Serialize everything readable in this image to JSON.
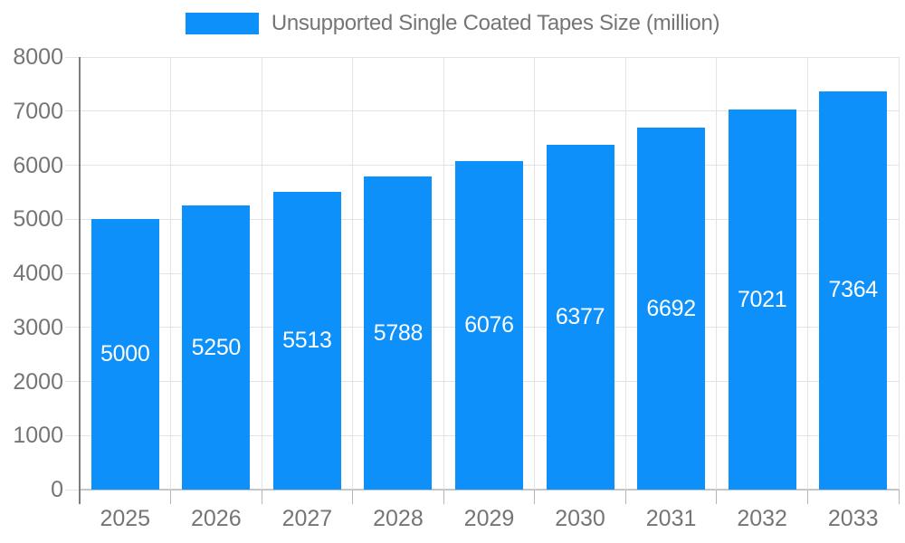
{
  "legend": {
    "label": "Unsupported Single Coated Tapes Size (million)"
  },
  "chart_data": {
    "type": "bar",
    "title": "Unsupported Single Coated Tapes Size (million)",
    "categories": [
      "2025",
      "2026",
      "2027",
      "2028",
      "2029",
      "2030",
      "2031",
      "2032",
      "2033"
    ],
    "values": [
      5000,
      5250,
      5513,
      5788,
      6076,
      6377,
      6692,
      7021,
      7364
    ],
    "xlabel": "",
    "ylabel": "",
    "ylim": [
      0,
      8000
    ],
    "ytick_step": 1000,
    "grid": true,
    "legend_position": "top-center",
    "value_labels": "centered-inside-bars",
    "colors": {
      "bar": "#0d90fa",
      "value_label": "#ffffff",
      "axis_text": "#757575",
      "gridline": "#e3e3e3",
      "baseline": "#c6c6c6",
      "y_axis_line": "#7d7d7d",
      "x_tick_mark": "#b5b5b5"
    }
  }
}
